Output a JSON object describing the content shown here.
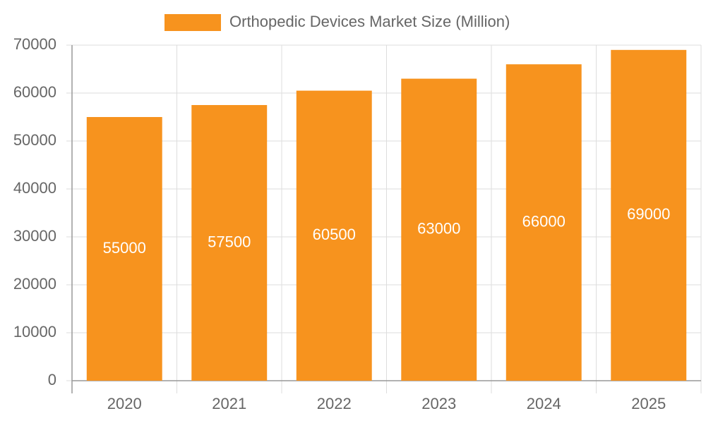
{
  "chart_data": {
    "type": "bar",
    "categories": [
      "2020",
      "2021",
      "2022",
      "2023",
      "2024",
      "2025"
    ],
    "series": [
      {
        "name": "Orthopedic Devices Market Size (Million)",
        "color": "#f7931e",
        "values": [
          55000,
          57500,
          60500,
          63000,
          66000,
          69000
        ]
      }
    ],
    "ylim": [
      0,
      70000
    ],
    "yticks": [
      0,
      10000,
      20000,
      30000,
      40000,
      50000,
      60000,
      70000
    ],
    "grid": true,
    "legend": "top",
    "data_labels": true
  }
}
